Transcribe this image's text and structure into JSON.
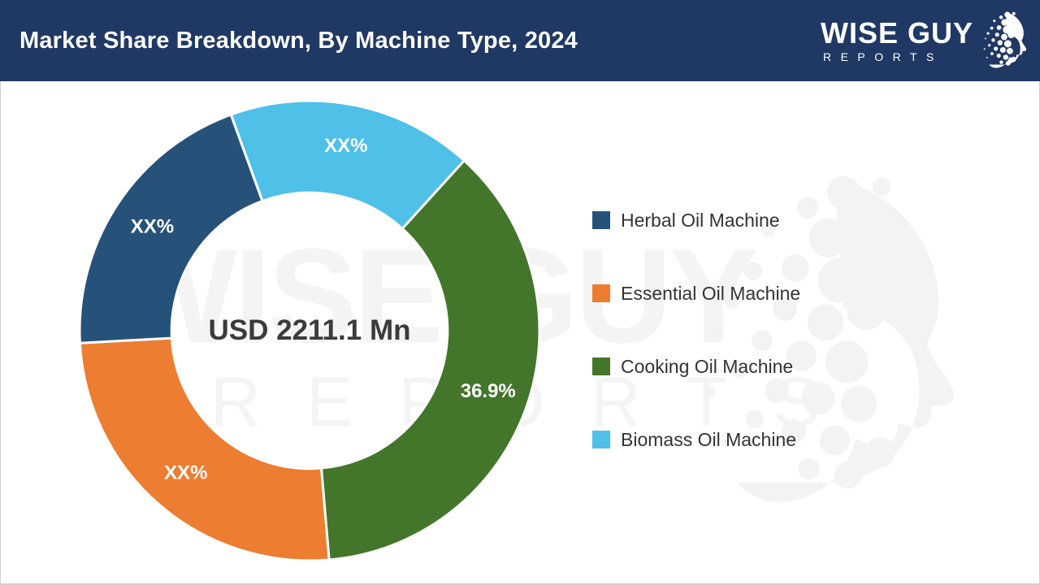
{
  "header": {
    "title": "Market Share Breakdown, By Machine Type, 2024",
    "brand": {
      "name": "WISE GUY",
      "sub": "REPORTS"
    }
  },
  "watermark": {
    "line1": "WISE GUY",
    "line2": "REPORTS"
  },
  "theme": {
    "header_bg": "#203864",
    "title_color": "#ffffff",
    "border_color": "#d0d0d0",
    "segment_stroke": "#ffffff",
    "slice_label_color": "#ffffff",
    "center_text_color": "#3b3b3b",
    "legend_text_color": "#333333",
    "watermark_color": "#f4f4f4"
  },
  "chart_data": {
    "type": "pie",
    "subtype": "donut",
    "title": "Market Share Breakdown, By Machine Type, 2024",
    "center_label": "USD 2211.1 Mn",
    "units": "percent of market share",
    "start_angle_deg": 340,
    "clockwise": true,
    "inner_radius_ratio": 0.6,
    "legend_position": "right",
    "segments": [
      {
        "name": "Herbal Oil Machine",
        "value": 20.3,
        "label": "XX%",
        "color": "#26527a"
      },
      {
        "name": "Essential Oil Machine",
        "value": 25.5,
        "label": "XX%",
        "color": "#ed7d31"
      },
      {
        "name": "Cooking Oil Machine",
        "value": 36.9,
        "label": "36.9%",
        "color": "#43762a"
      },
      {
        "name": "Biomass Oil Machine",
        "value": 17.3,
        "label": "XX%",
        "color": "#4fc0e8"
      }
    ]
  }
}
